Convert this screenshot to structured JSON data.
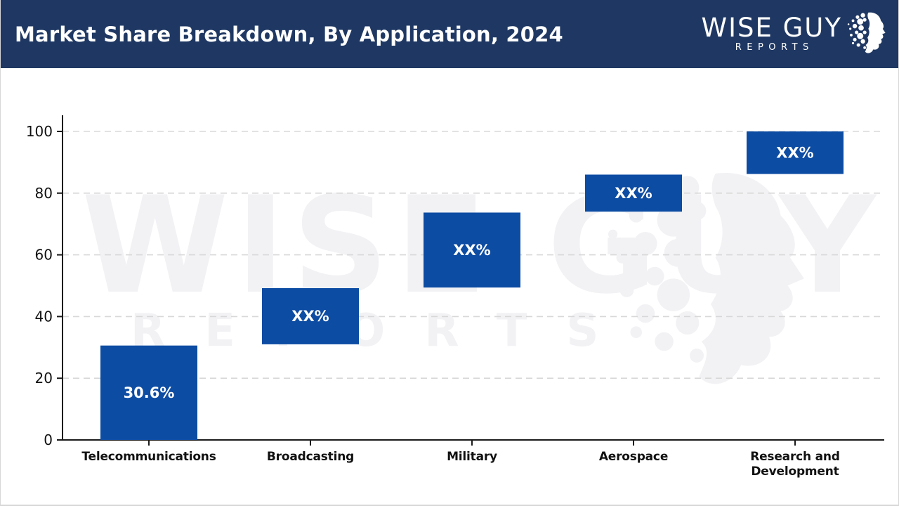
{
  "header": {
    "title": "Market Share Breakdown, By Application, 2024",
    "logo": {
      "line1": "WISE GUY",
      "line2": "REPORTS"
    }
  },
  "watermark": {
    "line1": "WISE GUY",
    "line2": "REPORTS"
  },
  "colors": {
    "header_bg": "#1F3863",
    "bar_fill": "#0D4CA3",
    "grid": "#D8D8D8",
    "axis": "#1A1A1A",
    "title_text": "#FFFFFF",
    "bar_label_text": "#FFFFFF",
    "watermark": "#F2F2F5"
  },
  "chart_data": {
    "type": "bar",
    "subtype": "waterfall",
    "title": "Market Share Breakdown, By Application, 2024",
    "unit": "%",
    "categories": [
      "Telecommunications",
      "Broadcasting",
      "Military",
      "Aerospace",
      "Research and Development"
    ],
    "segments": [
      {
        "category": "Telecommunications",
        "start": 0,
        "end": 30.6,
        "label": "30.6%"
      },
      {
        "category": "Broadcasting",
        "start": 31.0,
        "end": 49.2,
        "label": "XX%"
      },
      {
        "category": "Military",
        "start": 49.4,
        "end": 73.7,
        "label": "XX%"
      },
      {
        "category": "Aerospace",
        "start": 74.0,
        "end": 86.0,
        "label": "XX%"
      },
      {
        "category": "Research and Development",
        "start": 86.2,
        "end": 100.0,
        "label": "XX%"
      }
    ],
    "y_ticks": [
      0,
      20,
      40,
      60,
      80,
      100
    ],
    "ylim": [
      0,
      100
    ],
    "grid": "dashed-horizontal",
    "legend": "none"
  }
}
